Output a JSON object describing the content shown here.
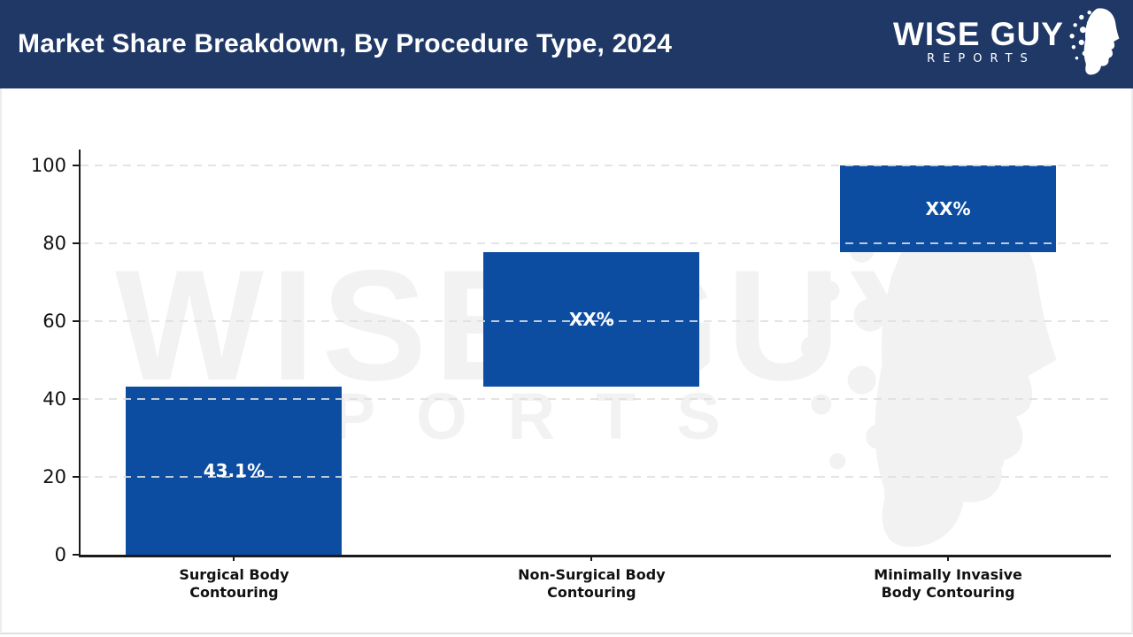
{
  "header": {
    "title": "Market Share Breakdown, By Procedure Type, 2024",
    "bg_color": "#1f3866",
    "logo": {
      "wordmark": "WISE GUY",
      "subtext": "REPORTS"
    }
  },
  "watermark": {
    "wordmark": "WISE GUY",
    "subtext": "REPORTS"
  },
  "chart_data": {
    "type": "bar",
    "subtype": "stacked-waterfall-percentage",
    "title": "Market Share Breakdown, By Procedure Type, 2024",
    "categories": [
      "Surgical Body\nContouring",
      "Non-Surgical Body\nContouring",
      "Minimally Invasive\nBody Contouring"
    ],
    "bars": [
      {
        "category": "Surgical Body Contouring",
        "start": 0,
        "end": 43.1,
        "label": "43.1%"
      },
      {
        "category": "Non-Surgical Body Contouring",
        "start": 43.1,
        "end": 77.7,
        "label": "XX%"
      },
      {
        "category": "Minimally Invasive Body Contouring",
        "start": 77.7,
        "end": 100,
        "label": "XX%"
      }
    ],
    "xlabel": "",
    "ylabel": "",
    "ylim": [
      0,
      100
    ],
    "yticks": [
      0,
      20,
      40,
      60,
      80,
      100
    ],
    "grid": "horizontal-dashed",
    "legend": "none",
    "bar_color": "#0c4da2",
    "bar_label_color": "#ffffff"
  }
}
